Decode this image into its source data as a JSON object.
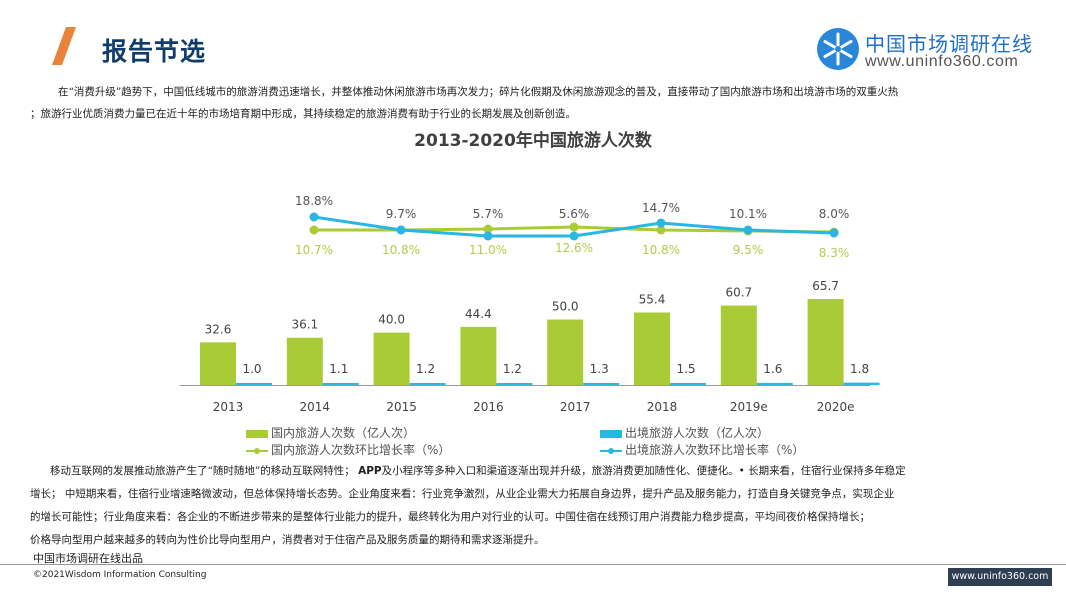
{
  "header": {
    "title": "报告节选",
    "logo": {
      "icon": "snowflake-logo-icon",
      "name": "中国市场调研在线",
      "url": "www.uninfo360.com"
    }
  },
  "intro": {
    "line1": "在“消费升级”趋势下，中国低线城市的旅游消费迅速增长，并整体推动休闲旅游市场再次发力；碎片化假期及休闲旅游观念的普及，直接带动了国内旅游市场和出境游市场的双重火热",
    "line2": "；旅游行业优质消费力量已在近十年的市场培育期中形成，其持续稳定的旅游消费有助于行业的长期发展及创新创造。"
  },
  "chart_data": {
    "type": "bar",
    "title": "2013-2020年中国旅游人次数",
    "categories": [
      "2013",
      "2014",
      "2015",
      "2016",
      "2017",
      "2018",
      "2019e",
      "2020e"
    ],
    "series": [
      {
        "name": "国内旅游人次数（亿人次）",
        "kind": "bar",
        "color": "#a9cb35",
        "values": [
          32.6,
          36.1,
          40.0,
          44.4,
          50.0,
          55.4,
          60.7,
          65.7
        ],
        "labels": [
          "32.6",
          "36.1",
          "40.0",
          "44.4",
          "50.0",
          "55.4",
          "60.7",
          "65.7"
        ]
      },
      {
        "name": "出境旅游人次数（亿人次）",
        "kind": "bar",
        "color": "#29b6e3",
        "values": [
          1.0,
          1.1,
          1.2,
          1.2,
          1.3,
          1.5,
          1.6,
          1.8
        ],
        "labels": [
          "1.0",
          "1.1",
          "1.2",
          "1.2",
          "1.3",
          "1.5",
          "1.6",
          "1.8"
        ]
      },
      {
        "name": "国内旅游人次数环比增长率（%）",
        "kind": "line",
        "color": "#a9cb35",
        "values": [
          10.7,
          10.8,
          11.0,
          12.6,
          10.8,
          9.5,
          8.3
        ],
        "x_index": [
          0,
          1,
          2,
          3,
          4,
          5,
          7
        ],
        "labels": [
          "10.7%",
          "10.8%",
          "11.0%",
          "12.6%",
          "10.8%",
          "9.5%",
          "8.3%"
        ]
      },
      {
        "name": "出境旅游人次数环比增长率（%）",
        "kind": "line",
        "color": "#29b6e3",
        "values": [
          18.8,
          9.7,
          5.7,
          5.6,
          14.7,
          10.1,
          8.0
        ],
        "x_index": [
          0,
          1,
          2,
          3,
          4,
          5,
          6
        ],
        "labels": [
          "18.8%",
          "9.7%",
          "5.7%",
          "5.6%",
          "14.7%",
          "10.1%",
          "8.0%"
        ]
      }
    ],
    "legend": [
      "国内旅游人次数（亿人次）",
      "出境旅游人次数（亿人次）",
      "国内旅游人次数环比增长率（%）",
      "出境旅游人次数环比增长率（%）"
    ],
    "legend_position": "bottom",
    "grid": false,
    "xlabel": "",
    "ylabel": ""
  },
  "body": {
    "line1_a": "移动互联网的发展推动旅游产生了“随时随地”的移动互联网特性；",
    "line1_b": "APP",
    "line1_c": "及小程序等多种入口和渠道逐渐出现并升级，旅游消费更加随性化、便捷化。• 长期来看，住宿行业保持多年稳定",
    "line2": "增长； 中短期来看，住宿行业增速略微波动，但总体保持增长态势。企业角度来看：行业竞争激烈，从业企业需大力拓展自身边界，提升产品及服务能力，打造自身关键竞争点，实现企业",
    "line3": "的增长可能性；行业角度来看：各企业的不断进步带来的是整体行业能力的提升，最终转化为用户对行业的认可。中国住宿在线预订用户消费能力稳步提高，平均间夜价格保持增长；",
    "line4": " 价格导向型用户越来越多的转向为性价比导向型用户，消费者对于住宿产品及服务质量的期待和需求逐渐提升。"
  },
  "footer": {
    "brand": "中国市场调研在线出品",
    "copyright": "©2021Wisdom Information Consulting",
    "url": "www.uninfo360.com"
  }
}
